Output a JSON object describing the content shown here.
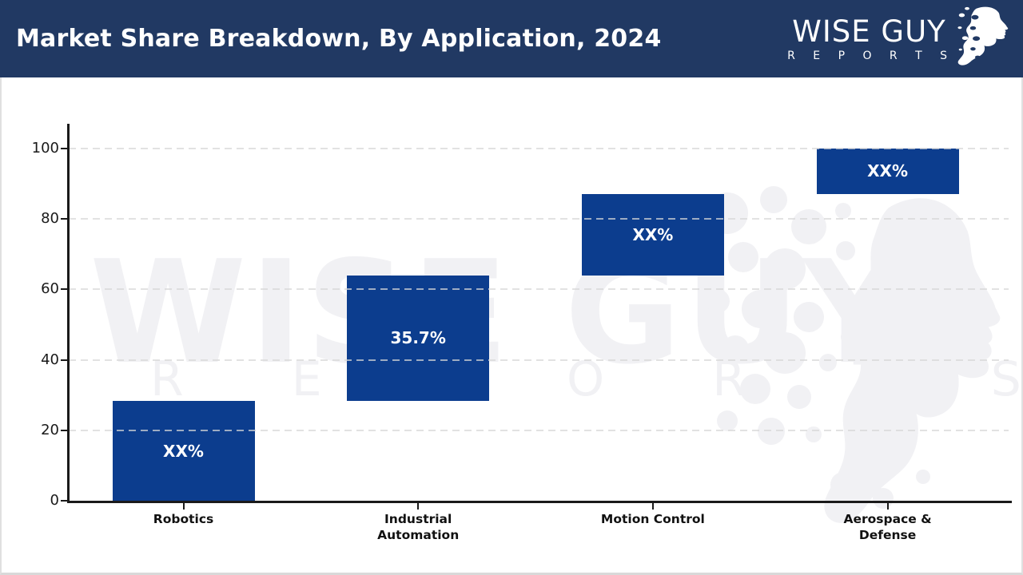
{
  "header": {
    "title": "Market Share Breakdown, By Application, 2024",
    "logo": {
      "name": "WISE GUY",
      "sub": "R E P O R T S"
    }
  },
  "watermark": {
    "name": "WISE GUY",
    "sub": "R E P O R T S"
  },
  "colors": {
    "header_bg": "#213963",
    "bar": "#0C3D8E",
    "grid": "#d7d7d7",
    "axis": "#1a1a1a",
    "value_label": "#ffffff",
    "watermark": "#f1f1f4",
    "page_bg": "#ffffff"
  },
  "chart_data": {
    "type": "bar",
    "subtype": "floating-segment-breakdown",
    "title": "Market Share Breakdown, By Application, 2024",
    "categories": [
      "Robotics",
      "Industrial Automation",
      "Motion Control",
      "Aerospace & Defense"
    ],
    "category_label_lines": [
      [
        "Robotics"
      ],
      [
        "Industrial",
        "Automation"
      ],
      [
        "Motion Control"
      ],
      [
        "Aerospace &",
        "Defense"
      ]
    ],
    "segments": [
      {
        "category": "Robotics",
        "start": 0,
        "end": 28.3,
        "value_label": "XX%"
      },
      {
        "category": "Industrial Automation",
        "start": 28.3,
        "end": 64.0,
        "value_label": "35.7%"
      },
      {
        "category": "Motion Control",
        "start": 64.0,
        "end": 87.1,
        "value_label": "XX%"
      },
      {
        "category": "Aerospace & Defense",
        "start": 87.1,
        "end": 100,
        "value_label": "XX%"
      }
    ],
    "yticks": [
      0,
      20,
      40,
      60,
      80,
      100
    ],
    "ylim": [
      0,
      107
    ],
    "xlabel": "",
    "ylabel": "",
    "grid": "horizontal-dashed",
    "legend": "none"
  }
}
